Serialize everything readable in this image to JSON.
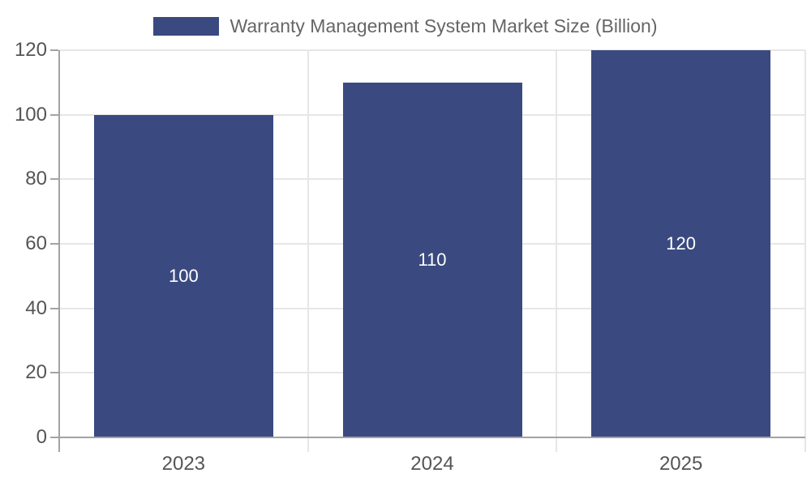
{
  "chart_data": {
    "type": "bar",
    "title": "Warranty Management System Market Size (Billion)",
    "legend_entries": [
      "Warranty Management System Market Size (Billion)"
    ],
    "legend_position": "top",
    "categories": [
      "2023",
      "2024",
      "2025"
    ],
    "series": [
      {
        "name": "Warranty Management System Market Size (Billion)",
        "values": [
          100,
          110,
          120
        ]
      }
    ],
    "data_labels": [
      "100",
      "110",
      "120"
    ],
    "xlabel": "",
    "ylabel": "",
    "ylim": [
      0,
      120
    ],
    "yticks": [
      0,
      20,
      40,
      60,
      80,
      100,
      120
    ],
    "grid": true,
    "colors": {
      "bar": "#3a4a80",
      "axis_line": "#a3a3a3",
      "gridline": "#e6e6e6",
      "tick_label": "#555555",
      "legend_text": "#666666",
      "data_label": "#ffffff",
      "background": "#ffffff"
    }
  }
}
